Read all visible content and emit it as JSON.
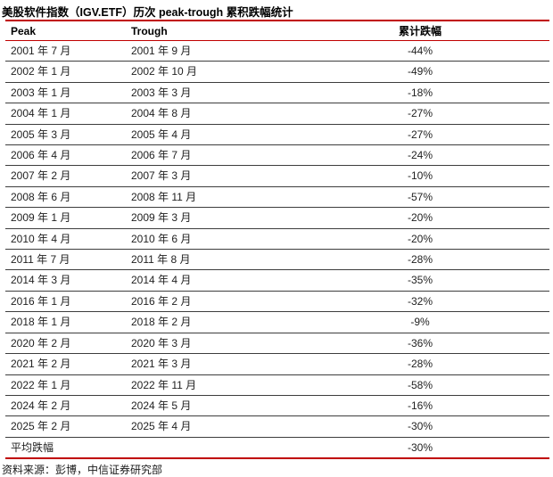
{
  "title": "美股软件指数（IGV.ETF）历次 peak-trough 累积跌幅统计",
  "source_note": "资料来源：彭博，中信证券研究部",
  "colors": {
    "accent_red": "#c00000",
    "row_separator": "#3d3d3d",
    "text": "#1f1f1f",
    "background": "#ffffff"
  },
  "chart_data": {
    "type": "table",
    "title": "美股软件指数（IGV.ETF）历次 peak-trough 累积跌幅统计",
    "columns": [
      "Peak",
      "Trough",
      "累计跌幅"
    ],
    "rows": [
      [
        "2001 年 7 月",
        "2001 年 9 月",
        "-44%"
      ],
      [
        "2002 年 1 月",
        "2002 年 10 月",
        "-49%"
      ],
      [
        "2003 年 1 月",
        "2003 年 3 月",
        "-18%"
      ],
      [
        "2004 年 1 月",
        "2004 年 8 月",
        "-27%"
      ],
      [
        "2005 年 3 月",
        "2005 年 4 月",
        "-27%"
      ],
      [
        "2006 年 4 月",
        "2006 年 7 月",
        "-24%"
      ],
      [
        "2007 年 2 月",
        "2007 年 3 月",
        "-10%"
      ],
      [
        "2008 年 6 月",
        "2008 年 11 月",
        "-57%"
      ],
      [
        "2009 年 1 月",
        "2009 年 3 月",
        "-20%"
      ],
      [
        "2010 年 4 月",
        "2010 年 6 月",
        "-20%"
      ],
      [
        "2011 年 7 月",
        "2011 年 8 月",
        "-28%"
      ],
      [
        "2014 年 3 月",
        "2014 年 4 月",
        "-35%"
      ],
      [
        "2016 年 1 月",
        "2016 年 2 月",
        "-32%"
      ],
      [
        "2018 年 1 月",
        "2018 年 2 月",
        "-9%"
      ],
      [
        "2020 年 2 月",
        "2020 年 3 月",
        "-36%"
      ],
      [
        "2021 年 2 月",
        "2021 年 3 月",
        "-28%"
      ],
      [
        "2022 年 1 月",
        "2022 年 11 月",
        "-58%"
      ],
      [
        "2024 年 2 月",
        "2024 年 5 月",
        "-16%"
      ],
      [
        "2025 年 2 月",
        "2025 年 4 月",
        "-30%"
      ]
    ],
    "summary_row": [
      "平均跌幅",
      "",
      "-30%"
    ]
  }
}
